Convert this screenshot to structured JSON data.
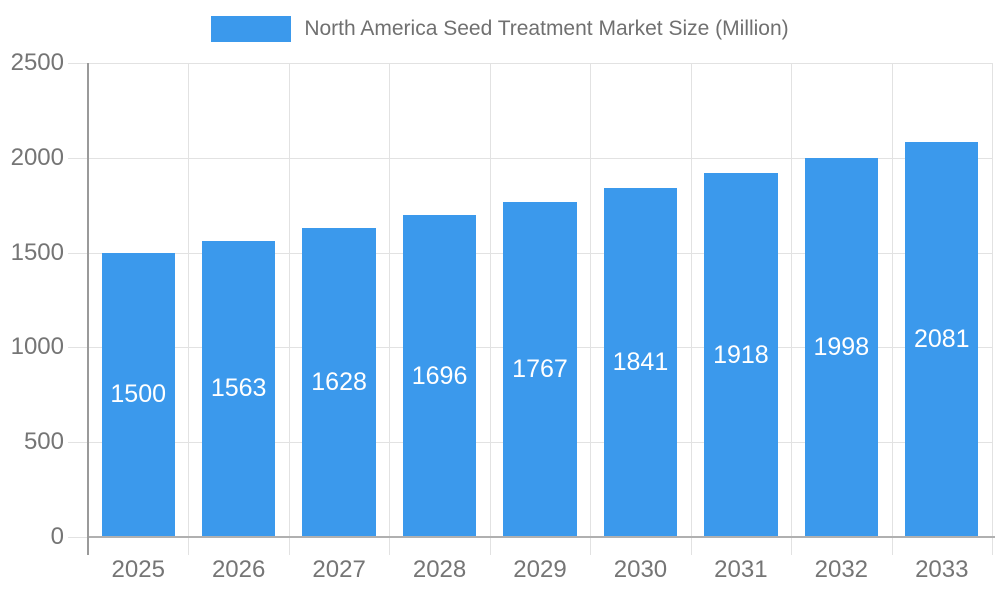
{
  "legend": {
    "label": "North America Seed Treatment Market Size (Million)"
  },
  "chart_data": {
    "type": "bar",
    "title": "North America Seed Treatment Market Size (Million)",
    "categories": [
      "2025",
      "2026",
      "2027",
      "2028",
      "2029",
      "2030",
      "2031",
      "2032",
      "2033"
    ],
    "values": [
      1500,
      1563,
      1628,
      1696,
      1767,
      1841,
      1918,
      1998,
      2081
    ],
    "xlabel": "",
    "ylabel": "",
    "ylim": [
      0,
      2500
    ],
    "yticks": [
      0,
      500,
      1000,
      1500,
      2000,
      2500
    ],
    "grid": true,
    "legend_position": "top",
    "bar_width_fraction": 0.73,
    "colors": {
      "bar": "#3b99ec",
      "value_label": "#ffffff",
      "gridline": "#e2e2e2",
      "y_axis_line": "#9a9a9a",
      "x_axis_line": "#b0b0b0",
      "axis_text": "#757575",
      "legend_text": "#707070"
    }
  }
}
